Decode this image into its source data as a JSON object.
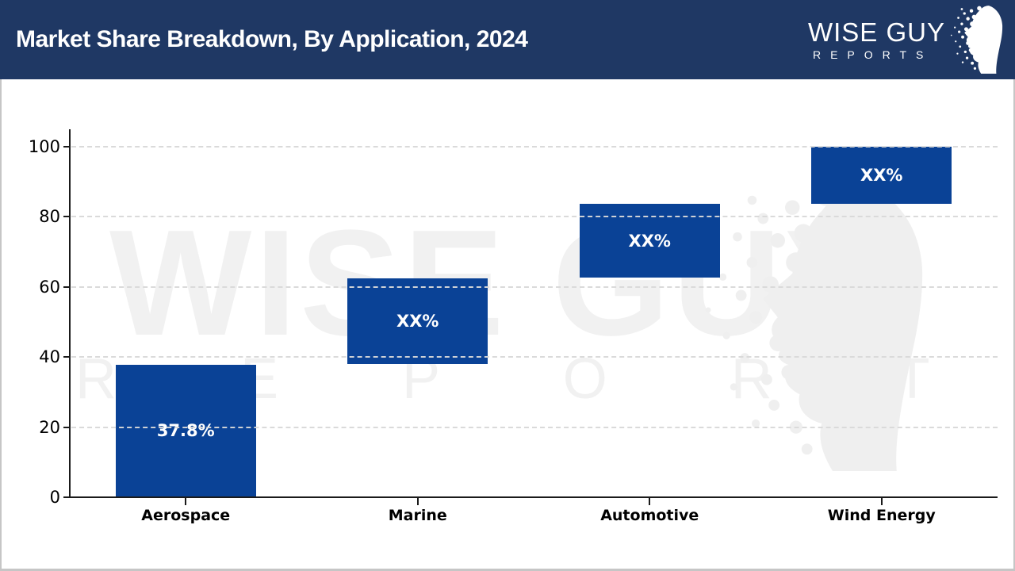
{
  "header": {
    "title": "Market Share Breakdown, By Application, 2024",
    "bg_color": "#1F3864",
    "logo": {
      "line1": "WISE GUY",
      "line2": "REPORTS"
    }
  },
  "watermark": {
    "line1": "WISE GUY",
    "line2": "R E P O R T S",
    "color": "#F1F1F1"
  },
  "chart_data": {
    "type": "bar",
    "subtype": "waterfall",
    "title": "Market Share Breakdown, By Application, 2024",
    "categories": [
      "Aerospace",
      "Marine",
      "Automotive",
      "Wind Energy"
    ],
    "segments": [
      {
        "category": "Aerospace",
        "start": 0,
        "end": 37.8,
        "value": 37.8,
        "label": "37.8%"
      },
      {
        "category": "Marine",
        "start": 38.1,
        "end": 62.4,
        "value": 24.3,
        "label": "XX%"
      },
      {
        "category": "Automotive",
        "start": 62.6,
        "end": 83.6,
        "value": 21.0,
        "label": "XX%"
      },
      {
        "category": "Wind Energy",
        "start": 83.7,
        "end": 100.0,
        "value": 16.3,
        "label": "XX%"
      }
    ],
    "xlabel": "",
    "ylabel": "",
    "ylim": [
      0,
      100
    ],
    "yticks": [
      0,
      20,
      40,
      60,
      80,
      100
    ],
    "grid": "horizontal dashed, drawn above bars",
    "legend": "none",
    "bar_color": "#0A4296",
    "bar_label_color": "#FFFFFF",
    "axis_color": "#1A1A1A",
    "gridline_color": "#D9D9D9"
  }
}
